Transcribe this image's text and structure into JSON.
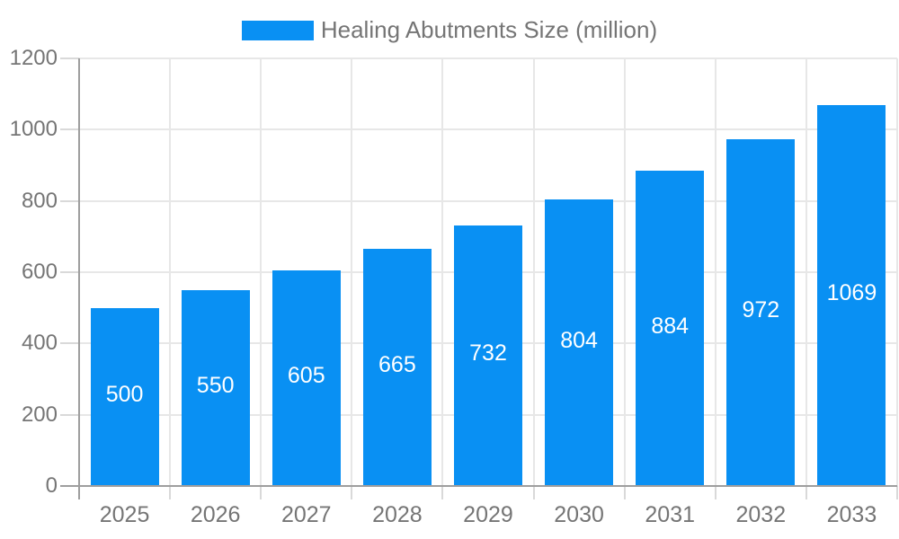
{
  "legend": {
    "label": "Healing Abutments Size (million)"
  },
  "colors": {
    "bar": "#0990f3",
    "bar_label": "#ffffff",
    "axis_text": "#757575",
    "grid_line": "#e7e7e7",
    "tick_line": "#d9d9d9",
    "axis_line": "#9e9e9e",
    "background": "#ffffff"
  },
  "chart_data": {
    "type": "bar",
    "title": "Healing Abutments Size (million)",
    "categories": [
      "2025",
      "2026",
      "2027",
      "2028",
      "2029",
      "2030",
      "2031",
      "2032",
      "2033"
    ],
    "values": [
      500,
      550,
      605,
      665,
      732,
      804,
      884,
      972,
      1069
    ],
    "bar_labels": [
      "500",
      "550",
      "605",
      "665",
      "732",
      "804",
      "884",
      "972",
      "1069"
    ],
    "xlabel": "",
    "ylabel": "",
    "ylim": [
      0,
      1200
    ],
    "yticks": [
      0,
      200,
      400,
      600,
      800,
      1000,
      1200
    ],
    "grid": true,
    "legend_position": "top"
  }
}
